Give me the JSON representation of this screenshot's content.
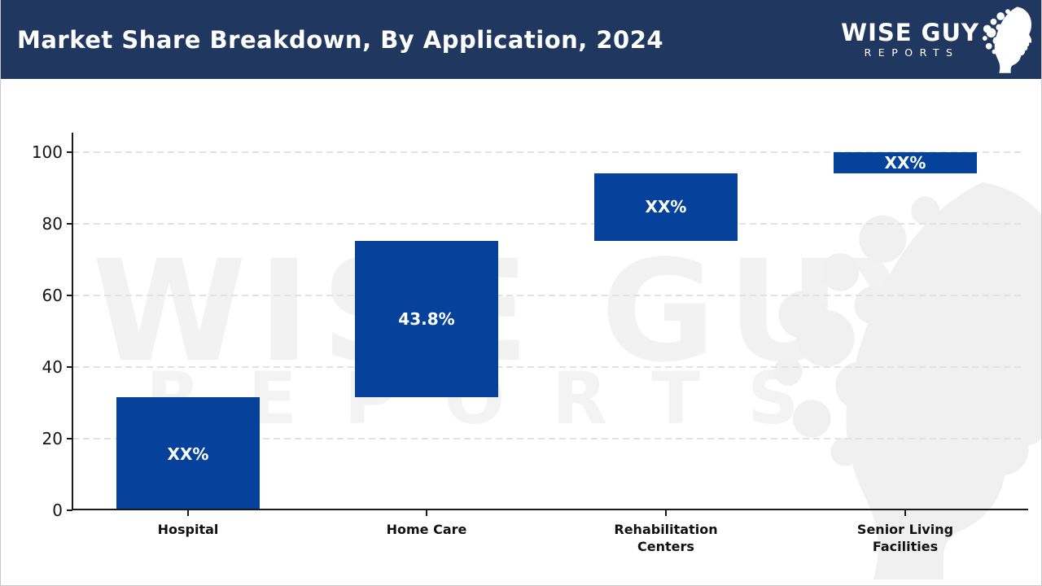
{
  "header": {
    "title": "Market Share Breakdown, By Application, 2024",
    "logo": {
      "line1": "WISE GUY",
      "line2": "REPORTS"
    }
  },
  "watermark": {
    "line1": "WISE GUY",
    "line2": "REPORTS"
  },
  "chart_data": {
    "type": "bar",
    "subtype": "waterfall-stacked-breakdown",
    "title": "Market Share Breakdown, By Application, 2024",
    "categories": [
      "Hospital",
      "Home Care",
      "Rehabilitation Centers",
      "Senior Living Facilities"
    ],
    "x_label_lines": [
      [
        "Hospital"
      ],
      [
        "Home Care"
      ],
      [
        "Rehabilitation",
        "Centers"
      ],
      [
        "Senior Living",
        "Facilities"
      ]
    ],
    "segments": [
      {
        "category": "Hospital",
        "start": 0,
        "end": 31.5,
        "label": "XX%"
      },
      {
        "category": "Home Care",
        "start": 31.5,
        "end": 75.3,
        "label": "43.8%"
      },
      {
        "category": "Rehabilitation Centers",
        "start": 75.3,
        "end": 94.1,
        "label": "XX%"
      },
      {
        "category": "Senior Living Facilities",
        "start": 94.1,
        "end": 100,
        "label": "XX%"
      }
    ],
    "visible_values": {
      "Home Care": "43.8%"
    },
    "masked_value_label": "XX%",
    "yticks": [
      0,
      20,
      40,
      60,
      80,
      100
    ],
    "ylim": [
      0,
      100
    ],
    "grid": "horizontal-dashed",
    "legend": "none",
    "bar_color": "#06429b",
    "bar_label_color": "#ffffff"
  },
  "colors": {
    "header_bg": "#203760",
    "header_text": "#ffffff",
    "bar": "#06429b",
    "grid": "#e2e2e2",
    "axis": "#1a1a1a",
    "watermark": "#f2f2f2",
    "card_border": "#c8c8c8"
  }
}
